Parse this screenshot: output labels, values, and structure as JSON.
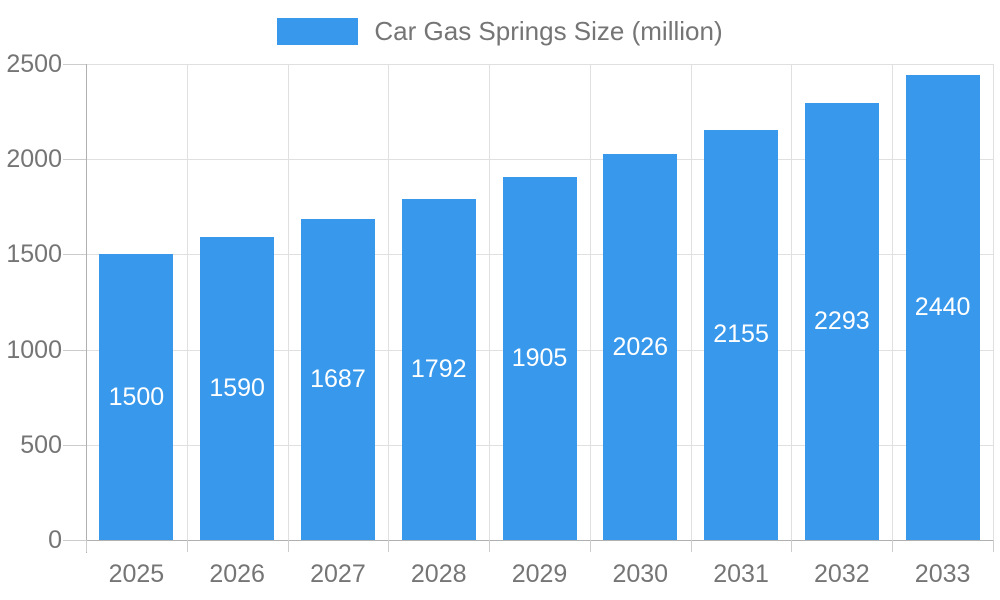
{
  "legend": {
    "label": "Car Gas Springs Size (million)"
  },
  "chart_data": {
    "type": "bar",
    "title": "",
    "xlabel": "",
    "ylabel": "",
    "categories": [
      "2025",
      "2026",
      "2027",
      "2028",
      "2029",
      "2030",
      "2031",
      "2032",
      "2033"
    ],
    "values": [
      1500,
      1590,
      1687,
      1792,
      1905,
      2026,
      2155,
      2293,
      2440
    ],
    "series_name": "Car Gas Springs Size (million)",
    "ylim": [
      0,
      2500
    ],
    "yticks": [
      0,
      500,
      1000,
      1500,
      2000,
      2500
    ],
    "grid": true,
    "legend_position": "top",
    "bar_color": "#3899EC",
    "value_label_color": "#ffffff",
    "axis_text_color": "#757575",
    "gridline_color": "#e0e0e0",
    "tick_color": "#cccccc",
    "axis_line_color": "#b0b0b0",
    "background_color": "#ffffff"
  }
}
